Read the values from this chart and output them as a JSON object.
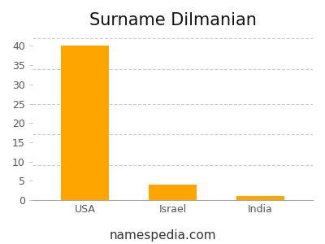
{
  "title": "Surname Dilmanian",
  "categories": [
    "USA",
    "Israel",
    "India"
  ],
  "values": [
    40,
    4,
    1
  ],
  "bar_color": "#FFA500",
  "ylim": [
    0,
    43
  ],
  "yticks": [
    0,
    5,
    10,
    15,
    20,
    25,
    30,
    35,
    40
  ],
  "grid_yticks": [
    9,
    17,
    25,
    34,
    42
  ],
  "grid_color": "#cccccc",
  "background_color": "#ffffff",
  "title_fontsize": 15,
  "tick_fontsize": 9,
  "watermark": "namespedia.com",
  "watermark_fontsize": 11,
  "bar_width": 0.55
}
